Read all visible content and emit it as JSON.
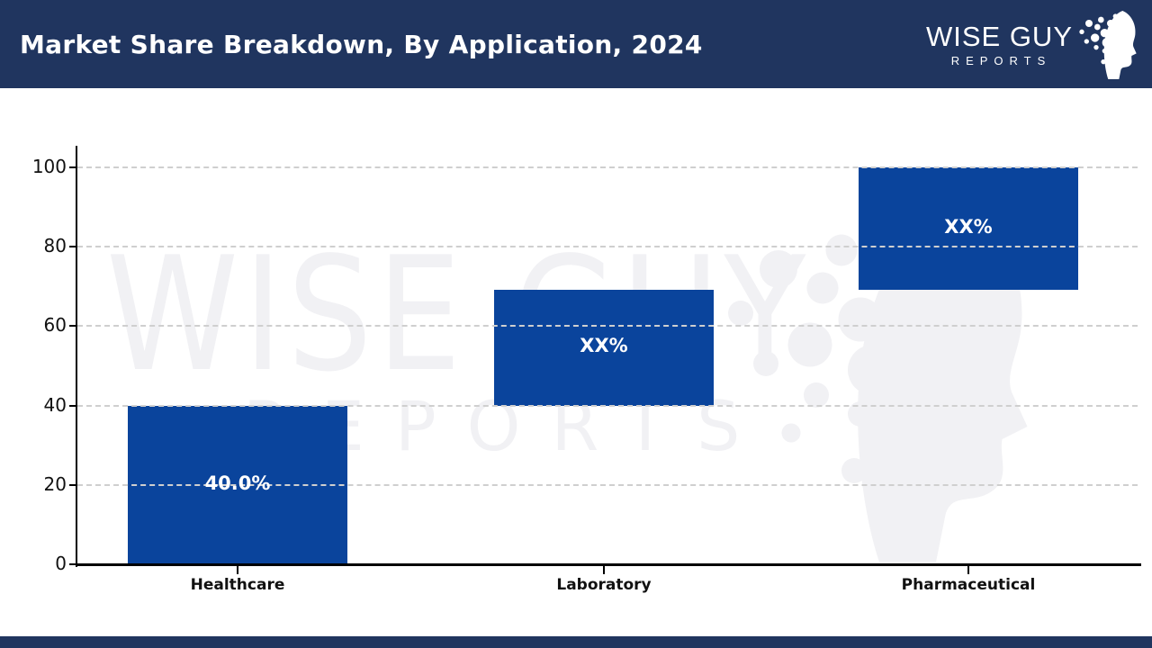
{
  "header": {
    "title": "Market Share Breakdown, By Application, 2024",
    "logo": {
      "line1": "WISE GUY",
      "line2": "REPORTS"
    }
  },
  "watermark": {
    "line1": "WISE GUY",
    "line2": "REPORTS"
  },
  "chart_data": {
    "type": "bar",
    "variant": "waterfall",
    "title": "Market Share Breakdown, By Application, 2024",
    "categories": [
      "Healthcare",
      "Laboratory",
      "Pharmaceutical"
    ],
    "segments": [
      {
        "category": "Healthcare",
        "start": 0,
        "end": 40,
        "label": "40.0%"
      },
      {
        "category": "Laboratory",
        "start": 40,
        "end": 69.2,
        "label": "XX%"
      },
      {
        "category": "Pharmaceutical",
        "start": 69.2,
        "end": 100,
        "label": "XX%"
      }
    ],
    "xlabel": "",
    "ylabel": "",
    "ylim": [
      0,
      105
    ],
    "yticks": [
      0,
      20,
      40,
      60,
      80,
      100
    ],
    "grid": "horizontal-dashed",
    "legend": "none",
    "bar_color": "#0a449c",
    "label_color": "#ffffff"
  },
  "colors": {
    "header_bg": "#20355f",
    "footer_bg": "#20355f",
    "bar": "#0a449c",
    "gridline": "#cfcfcf",
    "axis": "#000000",
    "watermark": "#f1f1f4"
  }
}
